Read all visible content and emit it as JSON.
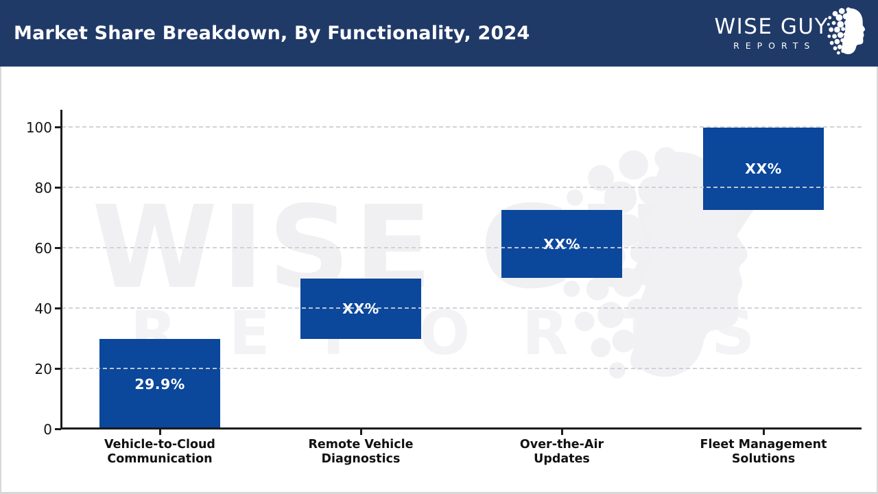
{
  "header": {
    "title": "Market Share Breakdown, By Functionality, 2024",
    "bg_color": "#203a68",
    "logo": {
      "wordmark": "WISE GUY",
      "subtitle": "REPORTS"
    }
  },
  "watermark": {
    "line1": "WISE GUY",
    "line2": "REPORTS"
  },
  "chart_data": {
    "type": "bar",
    "subtype": "floating-segment-waterfall",
    "title": "Market Share Breakdown, By Functionality, 2024",
    "unit": "%",
    "categories": [
      "Vehicle-to-Cloud Communication",
      "Remote Vehicle Diagnostics",
      "Over-the-Air Updates",
      "Fleet Management Solutions"
    ],
    "categories_lines": [
      [
        "Vehicle-to-Cloud",
        "Communication"
      ],
      [
        "Remote Vehicle",
        "Diagnostics"
      ],
      [
        "Over-the-Air",
        "Updates"
      ],
      [
        "Fleet Management",
        "Solutions"
      ]
    ],
    "bars": [
      {
        "category": "Vehicle-to-Cloud Communication",
        "start": 0,
        "end": 29.9,
        "label": "29.9%"
      },
      {
        "category": "Remote Vehicle Diagnostics",
        "start": 29.9,
        "end": 50,
        "label": "XX%"
      },
      {
        "category": "Over-the-Air Updates",
        "start": 50,
        "end": 72.7,
        "label": "XX%"
      },
      {
        "category": "Fleet Management Solutions",
        "start": 72.7,
        "end": 100,
        "label": "XX%"
      }
    ],
    "yticks": [
      0,
      20,
      40,
      60,
      80,
      100
    ],
    "ylim": [
      0,
      105
    ],
    "bar_color": "#0b479b",
    "grid": "dashed-horizontal",
    "legend": "none",
    "xlabel": "",
    "ylabel": ""
  }
}
